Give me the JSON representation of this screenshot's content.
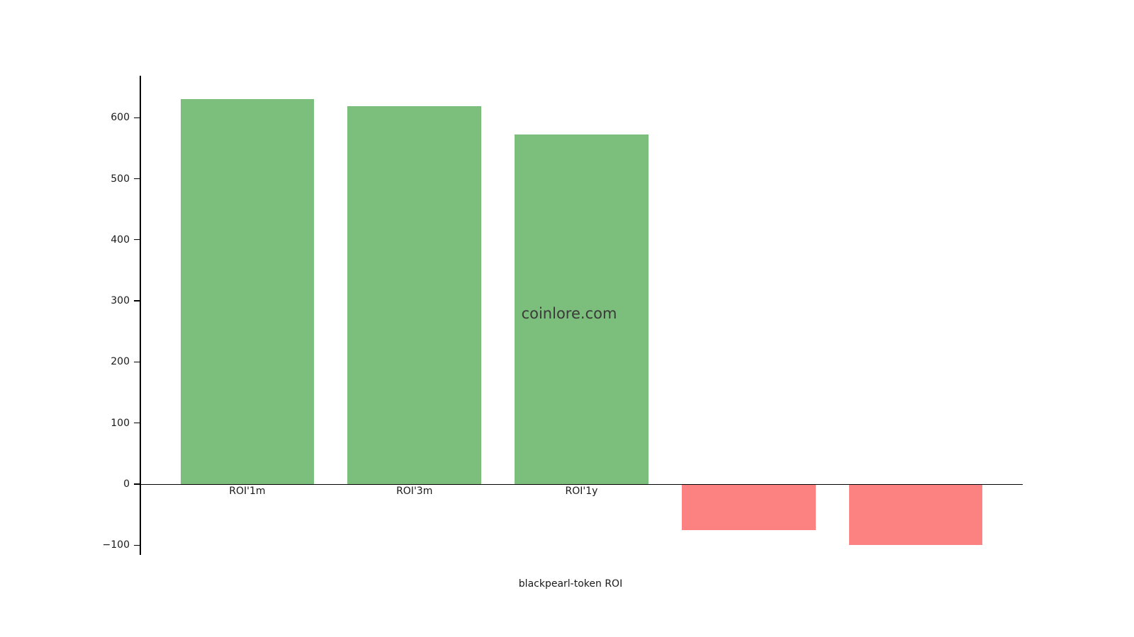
{
  "watermark": "coinlore.com",
  "chart_data": {
    "type": "bar",
    "title": "blackpearl-token ROI",
    "title_position": "bottom-center",
    "categories": [
      "ROI'1m",
      "ROI'3m",
      "ROI'1y",
      "",
      ""
    ],
    "values": [
      630,
      619,
      572,
      -74,
      -99
    ],
    "series": [
      {
        "name": "ROI",
        "values": [
          630,
          619,
          572,
          -74,
          -99
        ]
      }
    ],
    "yticks": [
      600,
      500,
      400,
      300,
      200,
      100,
      0,
      -100
    ],
    "ylim": [
      -135,
      668
    ],
    "xlabel": "",
    "ylabel": "",
    "grid": false,
    "legend": false,
    "bar_label_visibility": [
      true,
      true,
      true,
      false,
      false
    ],
    "colors": {
      "positive_bar": "#7cbe7c",
      "negative_bar": "#fc8181",
      "axis": "#000000",
      "tick_text": "#1a1a1a",
      "watermark_text": "#3a3a3a"
    }
  }
}
